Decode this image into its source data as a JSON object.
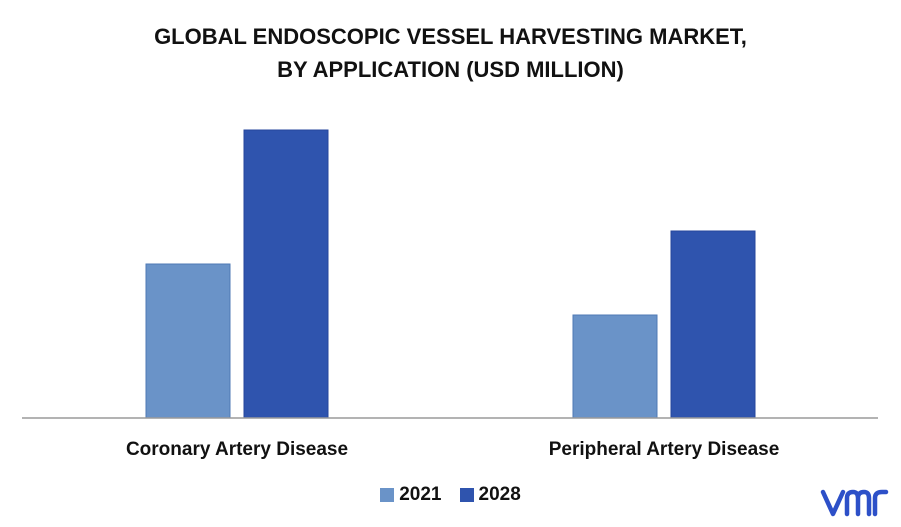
{
  "chart_data": {
    "type": "bar",
    "title_lines": [
      "GLOBAL ENDOSCOPIC VESSEL HARVESTING MARKET,",
      "BY APPLICATION (USD MILLION)"
    ],
    "categories": [
      "Coronary Artery Disease",
      "Peripheral Artery Disease"
    ],
    "series": [
      {
        "name": "2021",
        "values": [
          154,
          103
        ],
        "color": "#6a93c8"
      },
      {
        "name": "2028",
        "values": [
          288,
          187
        ],
        "color": "#2f54ae"
      }
    ],
    "ylim": [
      0,
      300
    ],
    "grid": false,
    "legend": "bottom-center"
  },
  "logo": {
    "icon": "vmr-logo-icon",
    "color": "#2d50c8"
  }
}
